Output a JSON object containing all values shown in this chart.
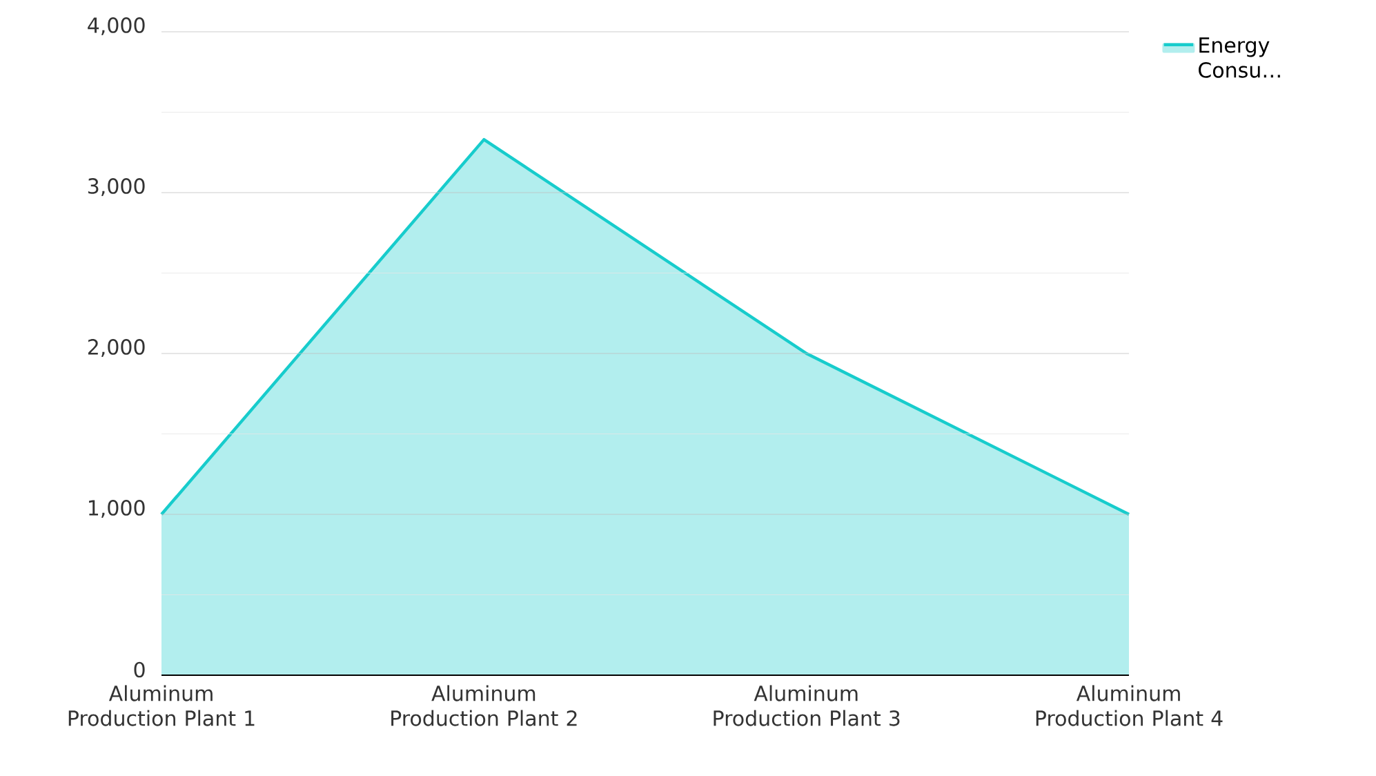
{
  "chart_data": {
    "type": "area",
    "categories": [
      "Aluminum Production Plant 1",
      "Aluminum Production Plant 2",
      "Aluminum Production Plant 3",
      "Aluminum Production Plant 4"
    ],
    "series": [
      {
        "name": "Energy Consu…",
        "color": "#17cccc",
        "values": [
          1000,
          3330,
          2000,
          1000
        ]
      }
    ],
    "ylim": [
      0,
      4000
    ],
    "yticks": [
      0,
      {
        "value": 500,
        "label": null
      },
      {
        "value": 1000,
        "label": "1,000"
      },
      {
        "value": 1500,
        "label": null
      },
      {
        "value": 2000,
        "label": "2,000"
      },
      {
        "value": 2500,
        "label": null
      },
      {
        "value": 3000,
        "label": "3,000"
      },
      {
        "value": 3500,
        "label": null
      },
      {
        "value": 4000,
        "label": "4,000"
      }
    ],
    "grid": "y",
    "legend": "top right"
  }
}
